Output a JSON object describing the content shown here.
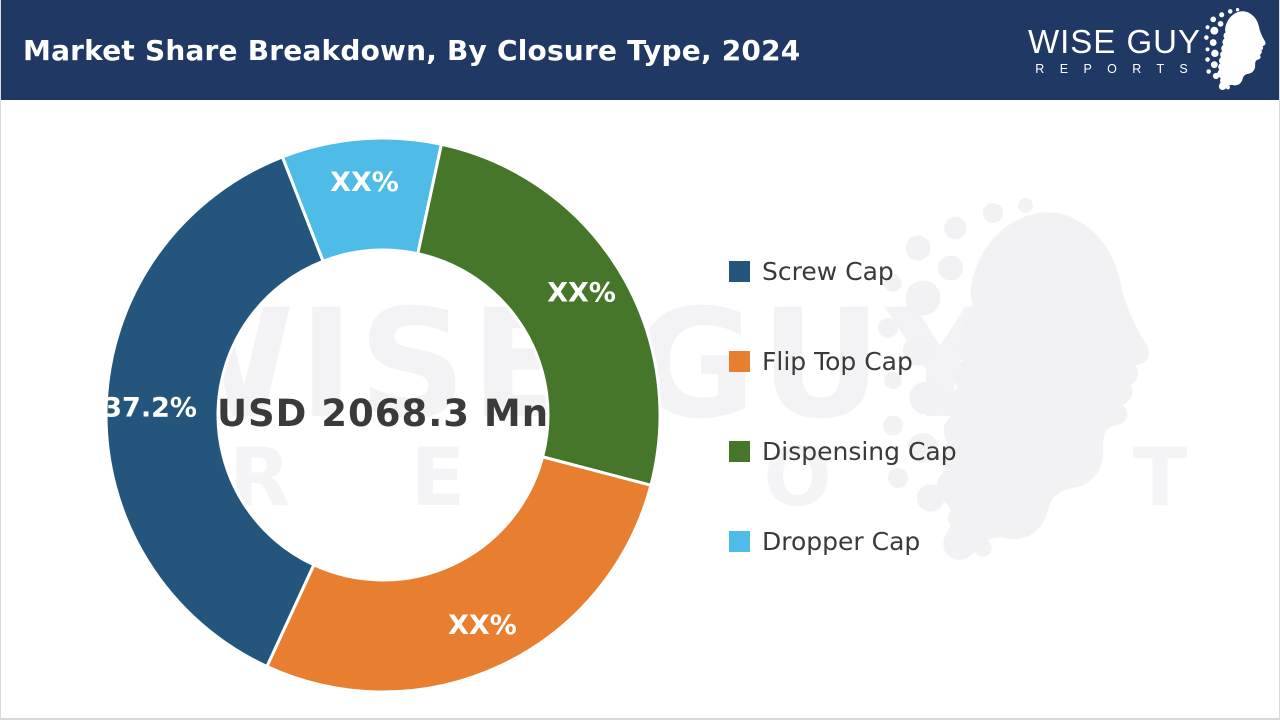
{
  "header": {
    "title": "Market Share Breakdown, By Closure Type, 2024",
    "background_color": "#1f3864",
    "logo": {
      "line1": "WISE GUY",
      "line2": "R E P O R T S"
    }
  },
  "watermark": {
    "line1": "WISE GUY",
    "line2": "R E P O R T S"
  },
  "chart_data": {
    "type": "donut",
    "title": "Market Share Breakdown, By Closure Type, 2024",
    "center_label": "USD 2068.3 Mn",
    "start_angle_deg": -21.3,
    "slices_clockwise": [
      {
        "name": "Dropper Cap",
        "label": "XX%",
        "value_pct": 9.3,
        "color": "#4ebce6"
      },
      {
        "name": "Dispensing Cap",
        "label": "XX%",
        "value_pct": 25.7,
        "color": "#46762a"
      },
      {
        "name": "Flip Top Cap",
        "label": "XX%",
        "value_pct": 27.8,
        "color": "#e87e30"
      },
      {
        "name": "Screw Cap",
        "label": "37.2%",
        "value_pct": 37.2,
        "color": "#24567d"
      }
    ],
    "legend": {
      "position": "right",
      "items": [
        {
          "label": "Screw Cap",
          "color": "#24567d"
        },
        {
          "label": "Flip Top Cap",
          "color": "#e87e30"
        },
        {
          "label": "Dispensing Cap",
          "color": "#46762a"
        },
        {
          "label": "Dropper Cap",
          "color": "#4ebce6"
        }
      ]
    }
  }
}
